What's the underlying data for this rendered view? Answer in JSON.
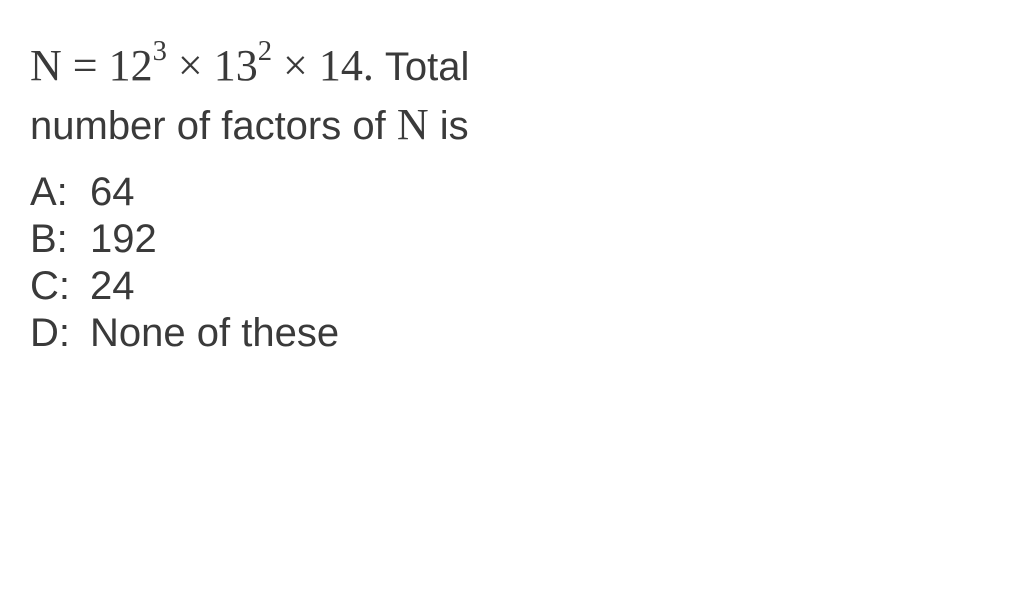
{
  "question": {
    "variable": "N",
    "equals": "=",
    "base1": "12",
    "exp1": "3",
    "times": "×",
    "base2": "13",
    "exp2": "2",
    "base3": "14",
    "period": ".",
    "text_total": "Total",
    "text_line2_part1": "number of factors of",
    "text_line2_var": "N",
    "text_line2_part2": "is"
  },
  "options": [
    {
      "label": "A:",
      "value": "64"
    },
    {
      "label": "B:",
      "value": "192"
    },
    {
      "label": "C:",
      "value": "24"
    },
    {
      "label": "D:",
      "value": "None of these"
    }
  ],
  "styling": {
    "background_color": "#ffffff",
    "text_color": "#3a3a3a",
    "equation_fontsize": 44,
    "text_fontsize": 40,
    "option_fontsize": 40,
    "math_font": "Times New Roman",
    "text_font": "Arial"
  }
}
